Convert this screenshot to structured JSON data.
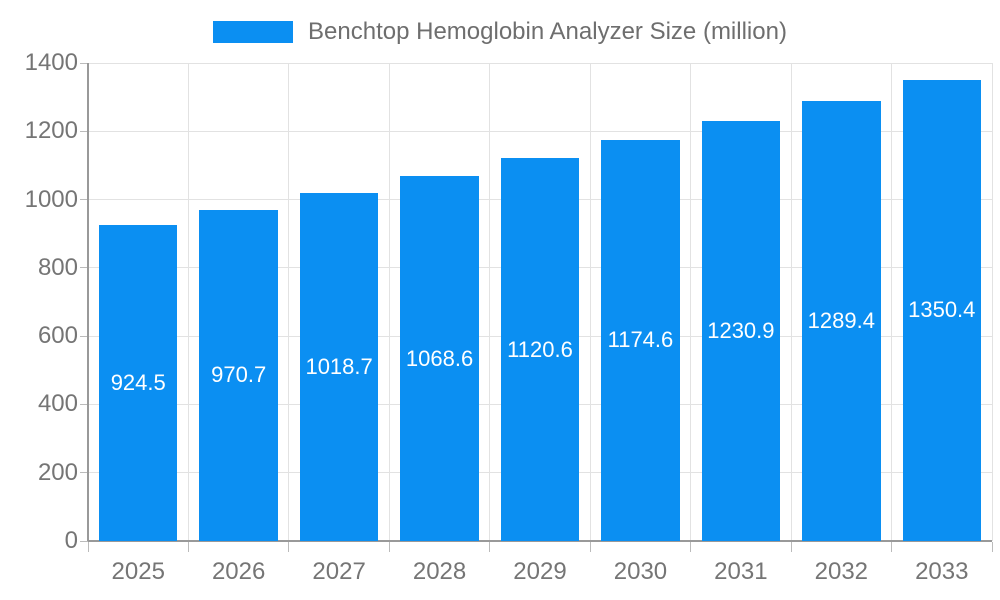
{
  "legend": {
    "label": "Benchtop Hemoglobin Analyzer Size (million)"
  },
  "colors": {
    "bar": "#0b8ff2",
    "grid": "#e2e2e2",
    "axis": "#999999",
    "tick": "#bbbbbb",
    "tick_text": "#757575",
    "legend_text": "#6e6e6e",
    "value_text": "#ffffff",
    "background": "#ffffff"
  },
  "chart_data": {
    "type": "bar",
    "title": "Benchtop Hemoglobin Analyzer Size (million)",
    "series_name": "Benchtop Hemoglobin Analyzer Size (million)",
    "categories": [
      "2025",
      "2026",
      "2027",
      "2028",
      "2029",
      "2030",
      "2031",
      "2032",
      "2033"
    ],
    "values": [
      924.5,
      970.7,
      1018.7,
      1068.6,
      1120.6,
      1174.6,
      1230.9,
      1289.4,
      1350.4
    ],
    "bar_labels": [
      "924.5",
      "970.7",
      "1018.7",
      "1068.6",
      "1120.6",
      "1174.6",
      "1230.9",
      "1289.4",
      "1350.4"
    ],
    "xlabel": "",
    "ylabel": "",
    "ylim": [
      0,
      1400
    ],
    "yticks": [
      0,
      200,
      400,
      600,
      800,
      1000,
      1200,
      1400
    ],
    "grid": true,
    "legend_position": "top-center",
    "bar_label_position": "middle"
  }
}
